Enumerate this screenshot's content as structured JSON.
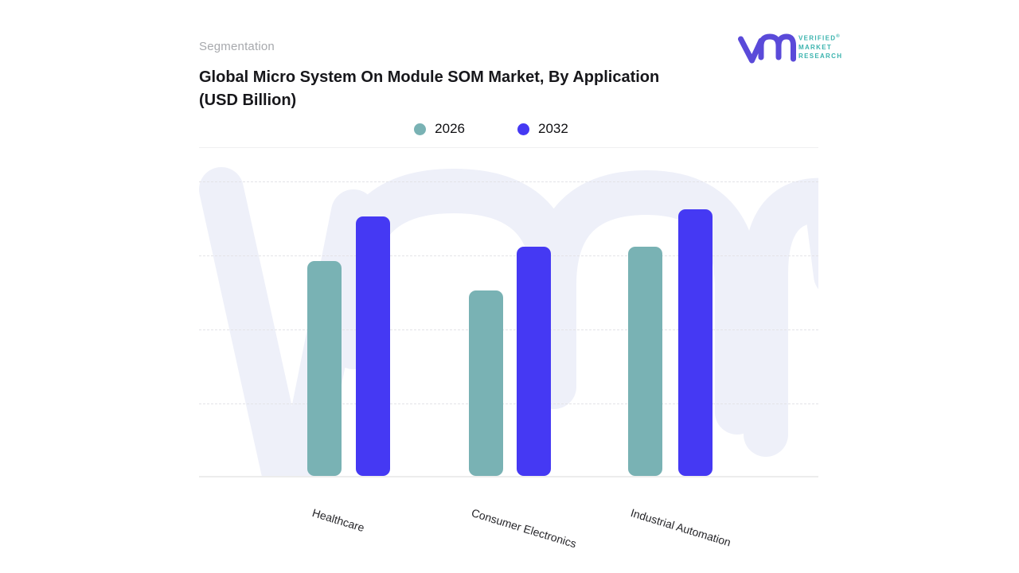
{
  "header": {
    "kicker": "Segmentation",
    "title_line1": "Global Micro System On Module SOM Market, By Application",
    "title_line2": "(USD Billion)"
  },
  "logo": {
    "line1": "VERIFIED",
    "registered_mark": "®",
    "line2": "MARKET",
    "line3": "RESEARCH",
    "monogram_color": "#5a4ad9",
    "text_color": "#3ab3ae"
  },
  "chart_data": {
    "type": "bar",
    "title": "Global Micro System On Module SOM Market, By Application (USD Billion)",
    "categories": [
      "Healthcare",
      "Consumer Electronics",
      "Industrial Automation"
    ],
    "series": [
      {
        "name": "2026",
        "color": "#79b2b4",
        "values": [
          2.9,
          2.5,
          3.1
        ]
      },
      {
        "name": "2032",
        "color": "#4539f3",
        "values": [
          3.5,
          3.1,
          3.6
        ]
      }
    ],
    "value_axis": {
      "min": 0,
      "max": 4,
      "gridline_values": [
        1,
        2,
        3,
        4
      ],
      "gridline_style": "dashed",
      "tick_labels_visible": false
    },
    "ylabel": "USD Billion",
    "note": "No numeric data labels shown; values estimated from gridline spacing",
    "legend_position": "top-center",
    "watermark_text": "vmr",
    "background_color": "#ffffff"
  }
}
